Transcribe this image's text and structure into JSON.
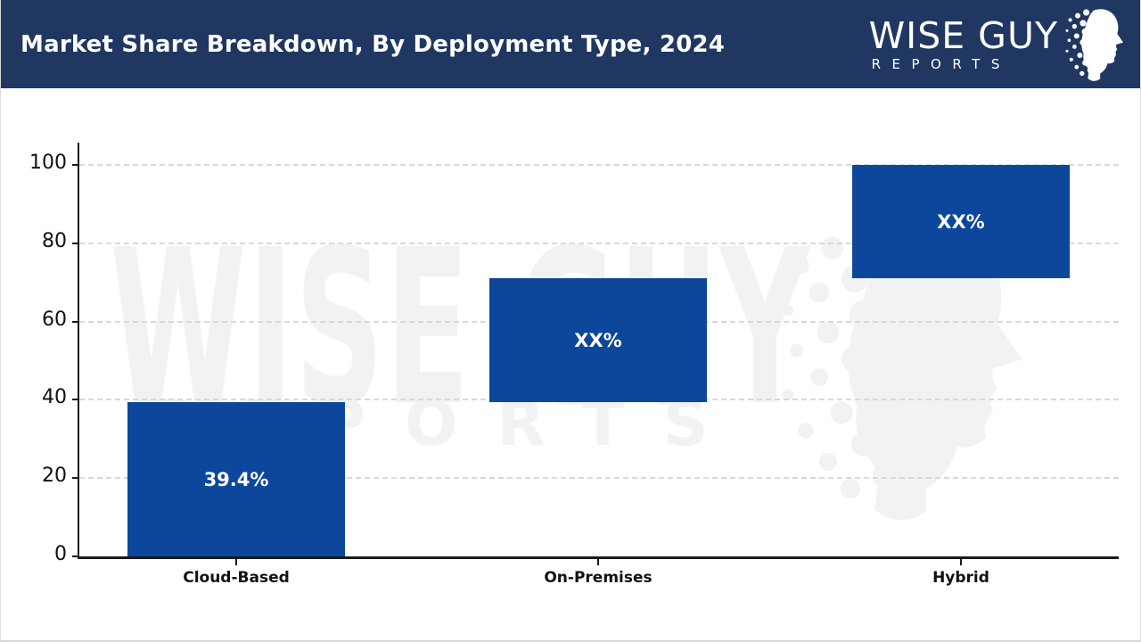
{
  "header": {
    "title": "Market Share Breakdown, By Deployment Type, 2024",
    "logo": {
      "line1": "WISE GUY",
      "line2": "REPORTS"
    }
  },
  "watermark": {
    "line1": "WISE GUY",
    "line2": "REPORTS"
  },
  "chart_data": {
    "type": "bar",
    "variant": "stacked-waterfall",
    "title": "Market Share Breakdown, By Deployment Type, 2024",
    "categories": [
      "Cloud-Based",
      "On-Premises",
      "Hybrid"
    ],
    "segments": [
      {
        "category": "Cloud-Based",
        "start": 0,
        "end": 39.4,
        "label": "39.4%"
      },
      {
        "category": "On-Premises",
        "start": 39.4,
        "end": 71,
        "label": "XX%"
      },
      {
        "category": "Hybrid",
        "start": 71,
        "end": 100,
        "label": "XX%"
      }
    ],
    "xlabel": "",
    "ylabel": "",
    "ylim": [
      0,
      100
    ],
    "yticks": [
      0,
      20,
      40,
      60,
      80,
      100
    ],
    "grid": "horizontal-dashed",
    "legend": "none",
    "colors": {
      "bar": "#0c479c",
      "bar_label": "#ffffff",
      "axis": "#1a1a1a",
      "grid": "#d9d9d9",
      "header_bg": "#203761",
      "header_text": "#ffffff",
      "watermark": "#f2f2f4"
    }
  }
}
